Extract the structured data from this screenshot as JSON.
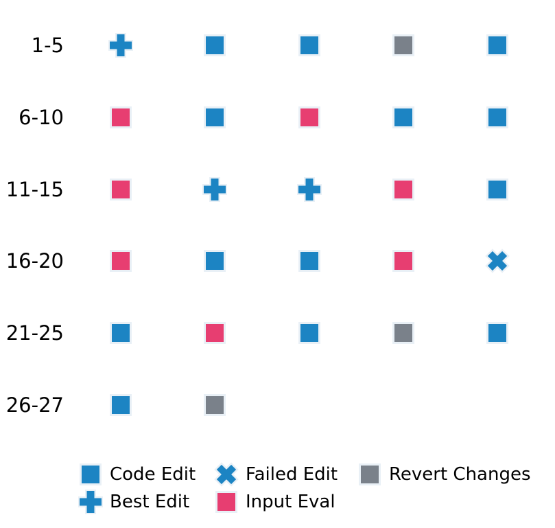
{
  "chart_data": {
    "type": "scatter",
    "title": "",
    "xlabel": "",
    "ylabel": "",
    "grid": false,
    "background": "#FFFFFF",
    "marker_edge_color": "#E9F0F6",
    "marker_types": {
      "code_edit": {
        "shape": "square",
        "color": "#1C84C3",
        "label": "Code Edit"
      },
      "failed_edit": {
        "shape": "x",
        "color": "#1C84C3",
        "label": "Failed Edit"
      },
      "revert_changes": {
        "shape": "square",
        "color": "#7A818A",
        "label": "Revert Changes"
      },
      "best_edit": {
        "shape": "plus",
        "color": "#1C84C3",
        "label": "Best Edit"
      },
      "input_eval": {
        "shape": "square",
        "color": "#E73E71",
        "label": "Input Eval"
      }
    },
    "rows": [
      {
        "label": "1-5",
        "markers": [
          "best_edit",
          "code_edit",
          "code_edit",
          "revert_changes",
          "code_edit"
        ]
      },
      {
        "label": "6-10",
        "markers": [
          "input_eval",
          "code_edit",
          "input_eval",
          "code_edit",
          "code_edit"
        ]
      },
      {
        "label": "11-15",
        "markers": [
          "input_eval",
          "best_edit",
          "best_edit",
          "input_eval",
          "code_edit"
        ]
      },
      {
        "label": "16-20",
        "markers": [
          "input_eval",
          "code_edit",
          "code_edit",
          "input_eval",
          "failed_edit"
        ]
      },
      {
        "label": "21-25",
        "markers": [
          "code_edit",
          "input_eval",
          "code_edit",
          "revert_changes",
          "code_edit"
        ]
      },
      {
        "label": "26-27",
        "markers": [
          "code_edit",
          "revert_changes",
          null,
          null,
          null
        ]
      }
    ],
    "legend_rows": [
      [
        "code_edit",
        "failed_edit",
        "revert_changes"
      ],
      [
        "best_edit",
        "input_eval"
      ]
    ],
    "legend_position": "bottom"
  }
}
